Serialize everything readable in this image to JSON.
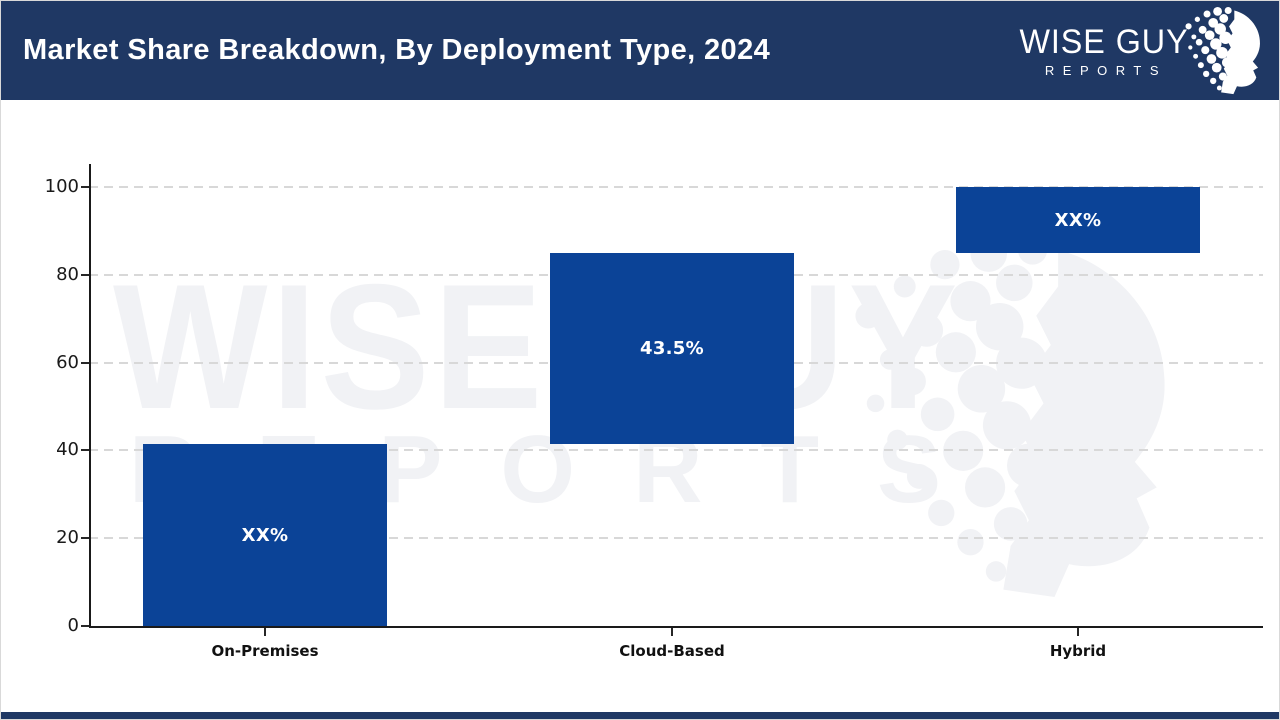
{
  "header": {
    "title": "Market Share Breakdown, By Deployment Type, 2024",
    "logo": {
      "line1": "WISE GUY",
      "line2": "REPORTS"
    }
  },
  "watermark": {
    "line1": "WISE GUY",
    "line2": "REPORTS"
  },
  "chart_data": {
    "type": "bar",
    "subtype": "waterfall-segments",
    "title": "Market Share Breakdown, By Deployment Type, 2024",
    "categories": [
      "On-Premises",
      "Cloud-Based",
      "Hybrid"
    ],
    "bars": [
      {
        "category": "On-Premises",
        "start": 0,
        "end": 41.4,
        "label": "XX%"
      },
      {
        "category": "Cloud-Based",
        "start": 41.4,
        "end": 84.9,
        "label": "43.5%"
      },
      {
        "category": "Hybrid",
        "start": 84.9,
        "end": 100,
        "label": "XX%"
      }
    ],
    "yticks": [
      0,
      20,
      40,
      60,
      80,
      100
    ],
    "ylim": [
      0,
      105
    ],
    "xlabel": "",
    "ylabel": "",
    "grid": "horizontal-dashed",
    "legend": "none",
    "bar_color": "#0b4397",
    "bar_label_color": "#ffffff"
  },
  "colors": {
    "header_bg": "#1f3864",
    "footer_bg": "#1f3864",
    "bar": "#0b4397",
    "gridline": "#d8d8d8",
    "watermark": "#f1f2f5",
    "spine": "#1a1a1a"
  }
}
